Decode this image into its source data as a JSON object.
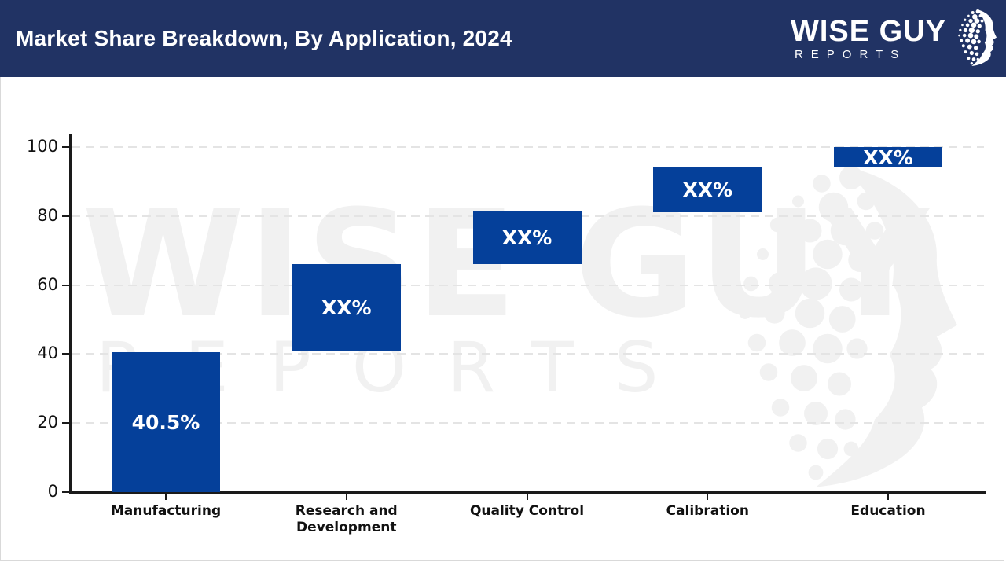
{
  "header": {
    "title": "Market Share Breakdown, By Application, 2024",
    "bg_color": "#213364",
    "logo_line1": "WISE GUY",
    "logo_line2": "REPORTS"
  },
  "watermark": {
    "line1": "WISE GUY",
    "line2": "REPORTS"
  },
  "chart_data": {
    "type": "bar",
    "variant": "waterfall",
    "title": "Market Share Breakdown, By Application, 2024",
    "categories": [
      "Manufacturing",
      "Research and Development",
      "Quality Control",
      "Calibration",
      "Education"
    ],
    "segments": [
      {
        "category": "Manufacturing",
        "start": 0,
        "end": 40.5,
        "label": "40.5%"
      },
      {
        "category": "Research and Development",
        "start": 41,
        "end": 66,
        "label": "XX%"
      },
      {
        "category": "Quality Control",
        "start": 66,
        "end": 81.5,
        "label": "XX%"
      },
      {
        "category": "Calibration",
        "start": 81,
        "end": 94,
        "label": "XX%"
      },
      {
        "category": "Education",
        "start": 94,
        "end": 100,
        "label": "XX%"
      }
    ],
    "bar_color": "#05409a",
    "bar_label_color": "#ffffff",
    "xlabel": "",
    "ylabel": "",
    "ylim": [
      0,
      100
    ],
    "yticks": [
      0,
      20,
      40,
      60,
      80,
      100
    ],
    "grid": true,
    "grid_style": "dashed",
    "legend": false
  }
}
